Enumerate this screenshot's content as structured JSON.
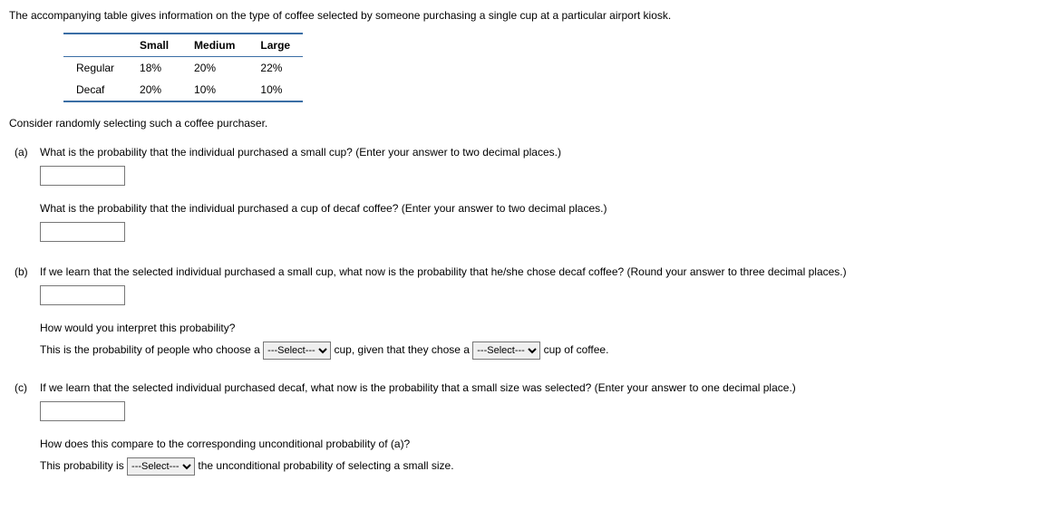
{
  "intro": "The accompanying table gives information on the type of coffee selected by someone purchasing a single cup at a particular airport kiosk.",
  "table": {
    "columns": [
      "",
      "Small",
      "Medium",
      "Large"
    ],
    "rows": [
      [
        "Regular",
        "18%",
        "20%",
        "22%"
      ],
      [
        "Decaf",
        "20%",
        "10%",
        "10%"
      ]
    ]
  },
  "consider": "Consider randomly selecting such a coffee purchaser.",
  "parts": {
    "a": {
      "label": "(a)",
      "q1": "What is the probability that the individual purchased a small cup? (Enter your answer to two decimal places.)",
      "q2": "What is the probability that the individual purchased a cup of decaf coffee? (Enter your answer to two decimal places.)"
    },
    "b": {
      "label": "(b)",
      "q1": "If we learn that the selected individual purchased a small cup, what now is the probability that he/she chose decaf coffee? (Round your answer to three decimal places.)",
      "interpret_q": "How would you interpret this probability?",
      "sentence_pre": "This is the probability of people who choose a ",
      "sentence_mid": " cup, given that they chose a ",
      "sentence_post": " cup of coffee.",
      "select_placeholder": "---Select---"
    },
    "c": {
      "label": "(c)",
      "q1": "If we learn that the selected individual purchased decaf, what now is the probability that a small size was selected? (Enter your answer to one decimal place.)",
      "compare_q": "How does this compare to the corresponding unconditional probability of (a)?",
      "sentence_pre": "This probability is ",
      "sentence_post": " the unconditional probability of selecting a small size.",
      "select_placeholder": "---Select---"
    }
  }
}
